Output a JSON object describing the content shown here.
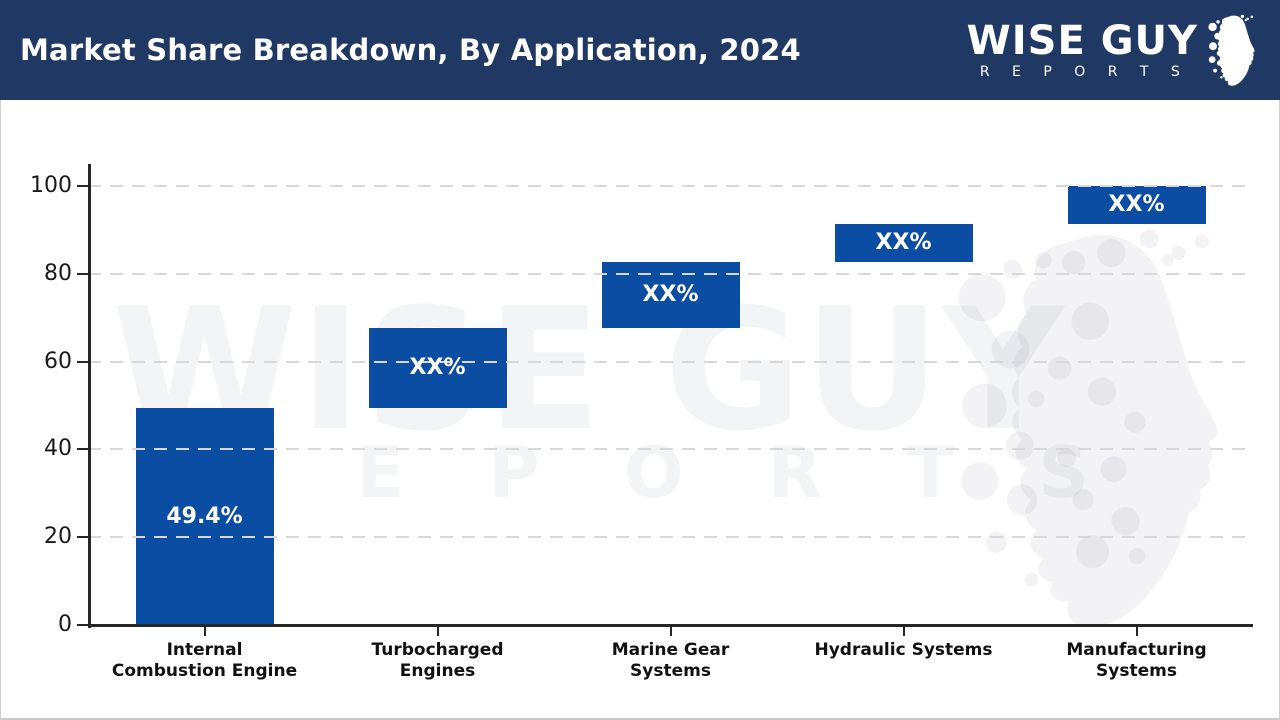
{
  "header": {
    "title": "Market Share Breakdown, By Application, 2024",
    "logo": {
      "brand": "WISE GUY",
      "sub": "R E P O R T S"
    },
    "bg_color": "#1f3864"
  },
  "watermark": {
    "line1": "WISE GUY",
    "line2": "R E P O R T S",
    "face_icon": "dotted-head-profile"
  },
  "chart_data": {
    "type": "bar",
    "variant": "waterfall",
    "title": "Market Share Breakdown, By Application, 2024",
    "categories": [
      "Internal Combustion Engine",
      "Turbocharged Engines",
      "Marine Gear Systems",
      "Hydraulic Systems",
      "Manufacturing Systems"
    ],
    "x_tick_labels": [
      [
        "Internal",
        "Combustion Engine"
      ],
      [
        "Turbocharged",
        "Engines"
      ],
      [
        "Marine Gear",
        "Systems"
      ],
      [
        "Hydraulic Systems"
      ],
      [
        "Manufacturing",
        "Systems"
      ]
    ],
    "segments": [
      {
        "category": "Internal Combustion Engine",
        "start": 0,
        "end": 49.4,
        "label": "49.4%"
      },
      {
        "category": "Turbocharged Engines",
        "start": 49.4,
        "end": 67.7,
        "label": "XX%"
      },
      {
        "category": "Marine Gear Systems",
        "start": 67.7,
        "end": 82.8,
        "label": "XX%"
      },
      {
        "category": "Hydraulic Systems",
        "start": 82.8,
        "end": 91.4,
        "label": "XX%"
      },
      {
        "category": "Manufacturing Systems",
        "start": 91.4,
        "end": 100,
        "label": "XX%"
      }
    ],
    "yticks": [
      0,
      20,
      40,
      60,
      80,
      100
    ],
    "ylim": [
      0,
      105
    ],
    "xlabel": "",
    "ylabel": "",
    "legend": "none",
    "grid": "horizontal-dashed-above-bars",
    "bar_color": "#0b4da2",
    "bar_label_color": "#ffffff",
    "axis_color": "#262626",
    "grid_color": "#d8d8d8"
  }
}
